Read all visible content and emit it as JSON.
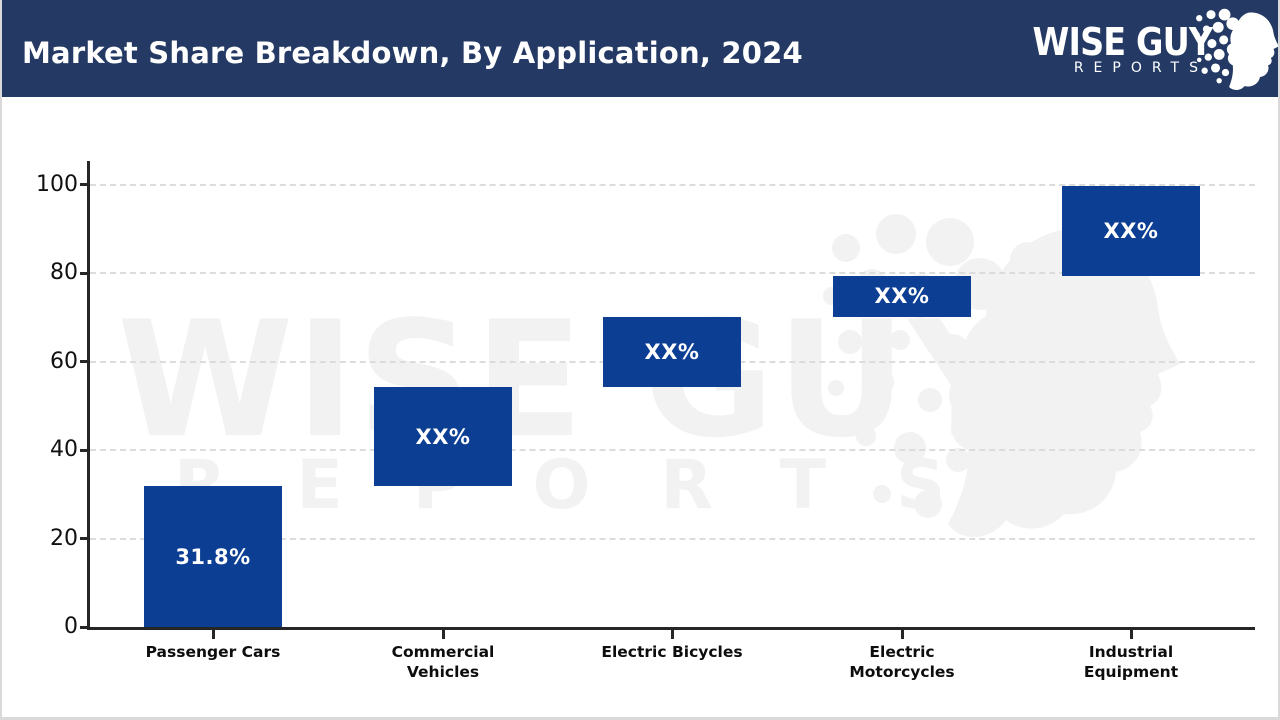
{
  "header": {
    "title": "Market Share Breakdown, By Application, 2024",
    "logo": {
      "primary": "WISE GUY",
      "secondary": "REPORTS"
    }
  },
  "watermark": {
    "primary": "WISE GUY",
    "secondary": "REPORTS"
  },
  "chart_data": {
    "type": "bar",
    "subtype": "waterfall",
    "title": "Market Share Breakdown, By Application, 2024",
    "xlabel": "",
    "ylabel": "",
    "ylim": [
      0,
      105
    ],
    "yticks": [
      0,
      20,
      40,
      60,
      80,
      100
    ],
    "grid": "horizontal-dashed",
    "legend": "none",
    "bar_color": "#0c3e94",
    "bar_label_color": "#ffffff",
    "categories": [
      "Passenger Cars",
      "Commercial Vehicles",
      "Electric Bicycles",
      "Electric Motorcycles",
      "Industrial Equipment"
    ],
    "category_label_lines": [
      [
        "Passenger Cars"
      ],
      [
        "Commercial",
        "Vehicles"
      ],
      [
        "Electric Bicycles"
      ],
      [
        "Electric",
        "Motorcycles"
      ],
      [
        "Industrial",
        "Equipment"
      ]
    ],
    "segments": [
      {
        "category": "Passenger Cars",
        "start": 0,
        "end": 31.8,
        "label": "31.8%"
      },
      {
        "category": "Commercial Vehicles",
        "start": 31.8,
        "end": 54.2,
        "label": "XX%"
      },
      {
        "category": "Electric Bicycles",
        "start": 54.2,
        "end": 70.1,
        "label": "XX%"
      },
      {
        "category": "Electric Motorcycles",
        "start": 70.1,
        "end": 79.4,
        "label": "XX%"
      },
      {
        "category": "Industrial Equipment",
        "start": 79.4,
        "end": 99.7,
        "label": "XX%"
      }
    ]
  },
  "colors": {
    "header_bg": "#243a64",
    "bar": "#0c3e94",
    "grid": "#dcdcdc",
    "axis": "#262626",
    "watermark": "#f2f2f2",
    "frame_border": "#d9d9d9"
  }
}
